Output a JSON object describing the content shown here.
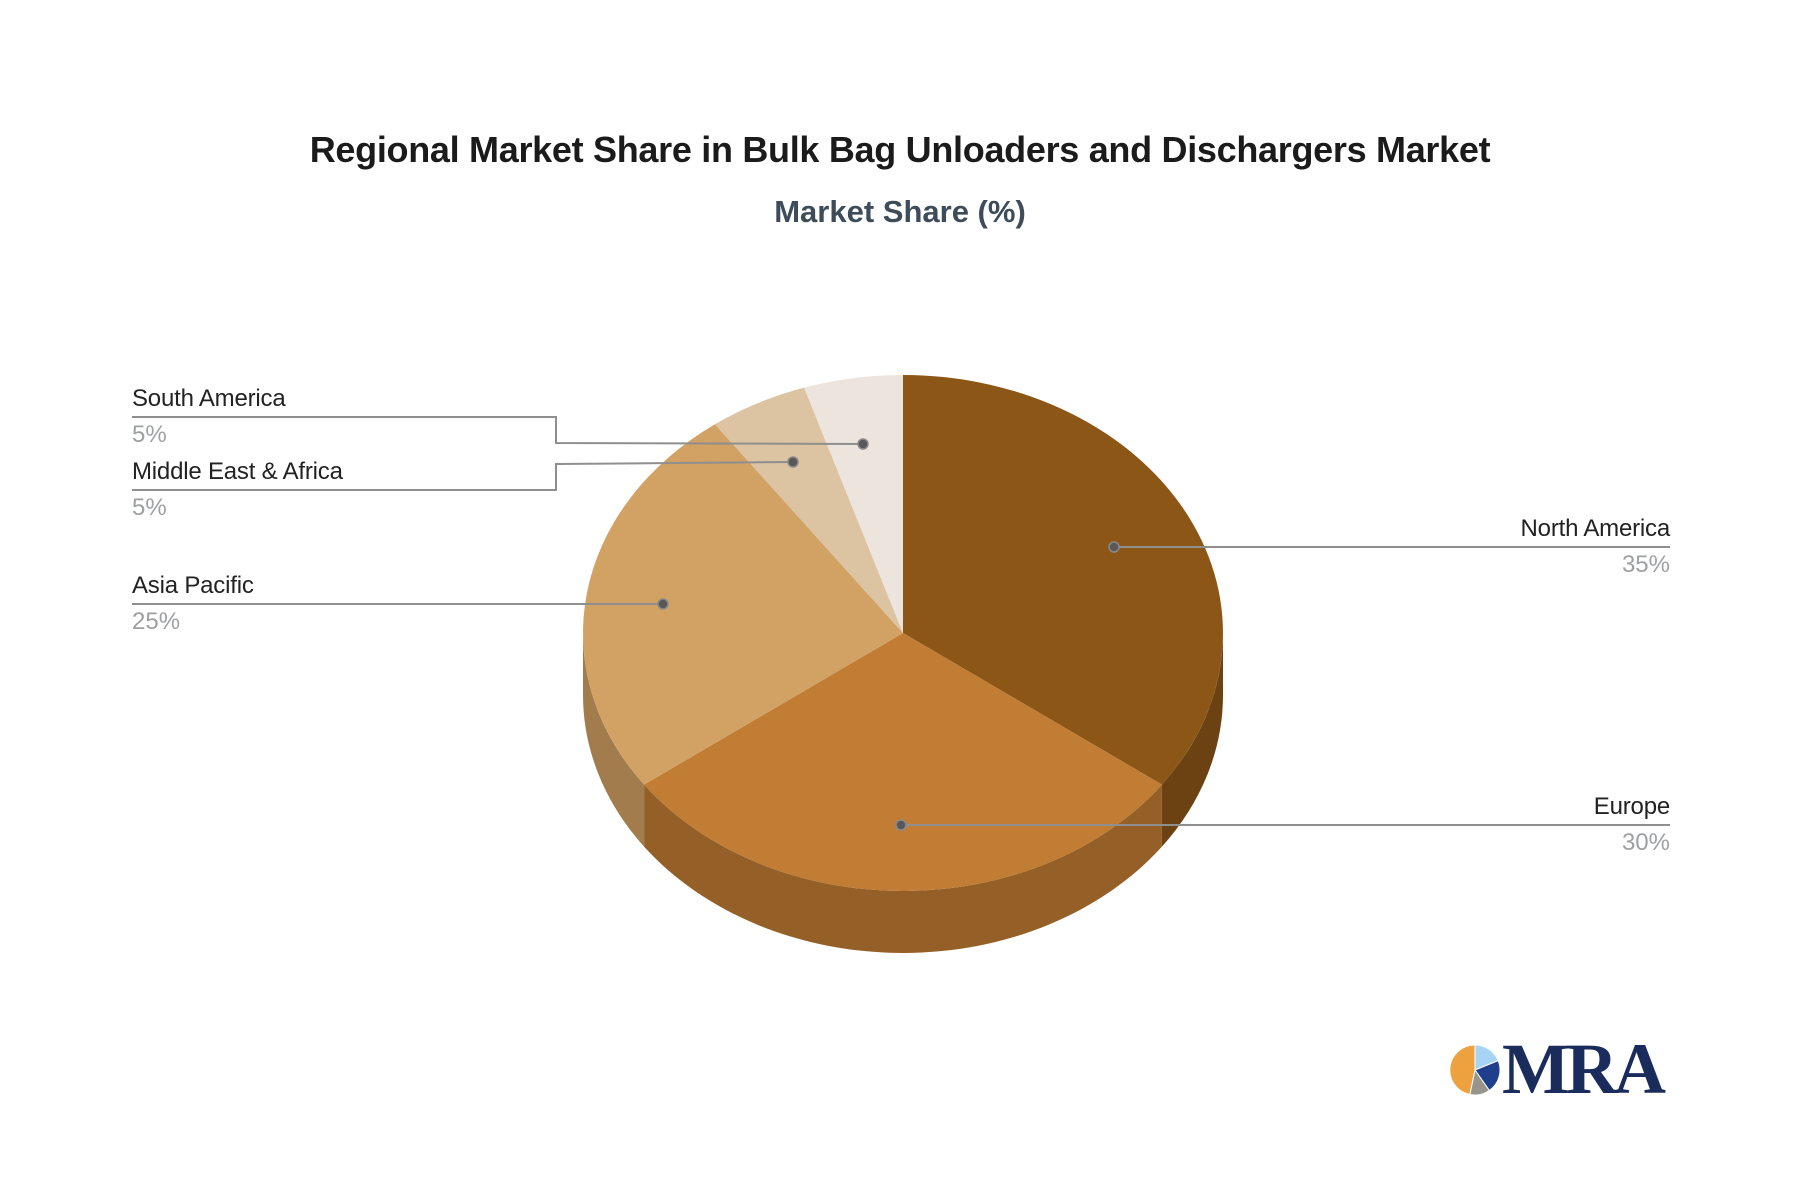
{
  "title": "Regional Market Share in Bulk Bag Unloaders and Dischargers Market",
  "subtitle": "Market Share (%)",
  "colors": {
    "title": "#1b1b1b",
    "subtitle": "#3e4c5a",
    "label": "#222222",
    "pct": "#9ea0a2",
    "connector": "#8f8f8f",
    "dot": "#58585a",
    "background": "#ffffff",
    "logo_text": "#1a2c5b"
  },
  "chart_data": {
    "type": "pie",
    "style": "3d",
    "title": "Regional Market Share in Bulk Bag Unloaders and Dischargers Market",
    "subtitle": "Market Share (%)",
    "unit": "%",
    "start_angle_deg": 0,
    "direction": "clockwise",
    "legend": "none",
    "series": [
      {
        "name": "North America",
        "value": 35,
        "pct_label": "35%",
        "color": "#8C5617",
        "label_side": "right"
      },
      {
        "name": "Europe",
        "value": 30,
        "pct_label": "30%",
        "color": "#C07D33",
        "label_side": "right"
      },
      {
        "name": "Asia Pacific",
        "value": 25,
        "pct_label": "25%",
        "color": "#D2A164",
        "label_side": "left"
      },
      {
        "name": "Middle East & Africa",
        "value": 5,
        "pct_label": "5%",
        "color": "#DCC3A2",
        "label_side": "left"
      },
      {
        "name": "South America",
        "value": 5,
        "pct_label": "5%",
        "color": "#EDE4DE",
        "label_side": "left"
      }
    ]
  },
  "logo": {
    "text": "MRA",
    "icon_colors": {
      "orange": "#EDA13F",
      "light_blue": "#A8D4F3",
      "dark_blue": "#1E3F8C",
      "gray": "#97948C"
    }
  }
}
